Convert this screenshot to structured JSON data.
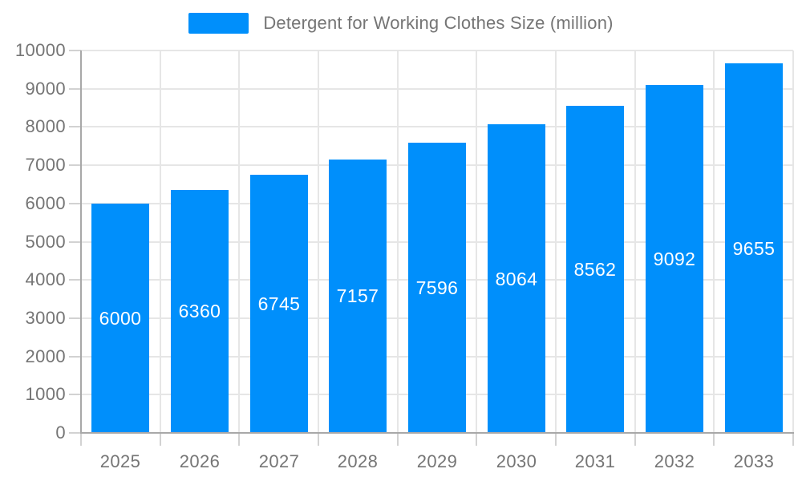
{
  "chart_data": {
    "type": "bar",
    "title": "Detergent for Working Clothes Size (million)",
    "categories": [
      "2025",
      "2026",
      "2027",
      "2028",
      "2029",
      "2030",
      "2031",
      "2032",
      "2033"
    ],
    "series": [
      {
        "name": "Detergent for Working Clothes Size (million)",
        "values": [
          6000,
          6360,
          6745,
          7157,
          7596,
          8064,
          8562,
          9092,
          9655
        ]
      }
    ],
    "xlabel": "",
    "ylabel": "",
    "ylim": [
      0,
      10000
    ],
    "yticks": [
      0,
      1000,
      2000,
      3000,
      4000,
      5000,
      6000,
      7000,
      8000,
      9000,
      10000
    ],
    "grid": true,
    "legend_position": "top",
    "value_labels": "inside-center",
    "colors": {
      "bar": "#008FFB",
      "grid": "#e6e6e6",
      "axis": "#a8a8a8",
      "tick_mark": "#d2d2d2",
      "axis_label": "#757575",
      "value_label": "#ffffff",
      "background": "#ffffff"
    }
  }
}
